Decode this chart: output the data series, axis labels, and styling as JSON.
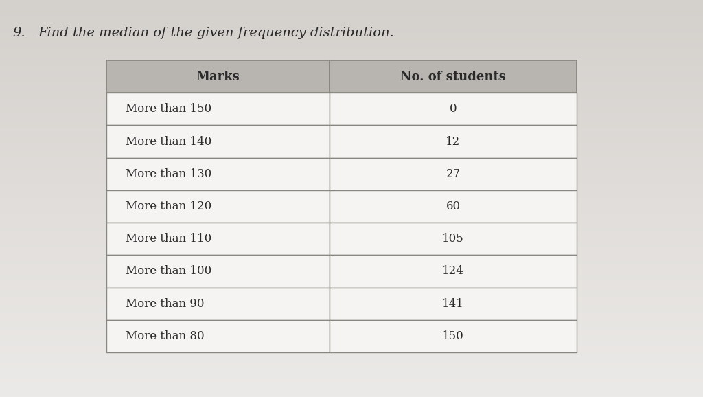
{
  "question_num": "9.",
  "question_text": "Find the median of the given frequency distribution.",
  "col_headers": [
    "Marks",
    "No. of students"
  ],
  "rows": [
    [
      "More than 150",
      "0"
    ],
    [
      "More than 140",
      "12"
    ],
    [
      "More than 130",
      "27"
    ],
    [
      "More than 120",
      "60"
    ],
    [
      "More than 110",
      "105"
    ],
    [
      "More than 100",
      "124"
    ],
    [
      "More than 90",
      "141"
    ],
    [
      "More than 80",
      "150"
    ]
  ],
  "page_color_top": "#d4d0cc",
  "page_color_bot": "#e8e6e2",
  "header_bg": "#b8b4b0",
  "row_bg": "#f5f4f2",
  "text_color": "#2a2a2a",
  "border_color": "#888880",
  "title_fontsize": 14,
  "header_fontsize": 13,
  "row_fontsize": 12,
  "question_fontsize": 14
}
